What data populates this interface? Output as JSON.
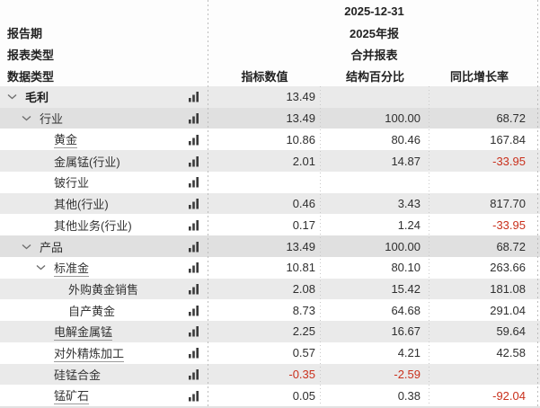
{
  "header": {
    "date": "2025-12-31",
    "report_type": "2025年报",
    "statement_type": "合并报表",
    "row_labels": {
      "period": "报告期",
      "statement": "报表类型",
      "data_type": "数据类型"
    },
    "columns": {
      "c1": "指标数值",
      "c2": "结构百分比",
      "c3": "同比增长率"
    }
  },
  "colors": {
    "negative_value": "#c9301c",
    "row_gray": "#eaeaea",
    "row_group": "#e0e0e0",
    "row_white": "#ffffff",
    "icon_dark": "#3a3a3a",
    "chevron_gray": "#6e6e6e"
  },
  "icons": {
    "chevron": "chevron-down-icon",
    "bars": "bar-chart-icon"
  },
  "rows": [
    {
      "label": "毛利",
      "v1": "13.49",
      "v2": "",
      "v3": "",
      "level": 1,
      "expand": true,
      "bold": true,
      "underline": false,
      "bg": "gray"
    },
    {
      "label": "行业",
      "v1": "13.49",
      "v2": "100.00",
      "v3": "68.72",
      "level": 2,
      "expand": true,
      "bold": false,
      "underline": false,
      "bg": "group"
    },
    {
      "label": "黄金",
      "v1": "10.86",
      "v2": "80.46",
      "v3": "167.84",
      "level": 3,
      "expand": false,
      "bold": false,
      "underline": true,
      "bg": "white"
    },
    {
      "label": "金属锰(行业)",
      "v1": "2.01",
      "v2": "14.87",
      "v3": "-33.95",
      "level": 3,
      "expand": false,
      "bold": false,
      "underline": false,
      "bg": "gray"
    },
    {
      "label": "铍行业",
      "v1": "",
      "v2": "",
      "v3": "",
      "level": 3,
      "expand": false,
      "bold": false,
      "underline": false,
      "bg": "white"
    },
    {
      "label": "其他(行业)",
      "v1": "0.46",
      "v2": "3.43",
      "v3": "817.70",
      "level": 3,
      "expand": false,
      "bold": false,
      "underline": false,
      "bg": "gray"
    },
    {
      "label": "其他业务(行业)",
      "v1": "0.17",
      "v2": "1.24",
      "v3": "-33.95",
      "level": 3,
      "expand": false,
      "bold": false,
      "underline": false,
      "bg": "white"
    },
    {
      "label": "产品",
      "v1": "13.49",
      "v2": "100.00",
      "v3": "68.72",
      "level": 2,
      "expand": true,
      "bold": false,
      "underline": false,
      "bg": "group"
    },
    {
      "label": "标准金",
      "v1": "10.81",
      "v2": "80.10",
      "v3": "263.66",
      "level": 3,
      "expand": true,
      "bold": false,
      "underline": true,
      "bg": "white"
    },
    {
      "label": "外购黄金销售",
      "v1": "2.08",
      "v2": "15.42",
      "v3": "181.08",
      "level": 4,
      "expand": false,
      "bold": false,
      "underline": false,
      "bg": "gray"
    },
    {
      "label": "自产黄金",
      "v1": "8.73",
      "v2": "64.68",
      "v3": "291.04",
      "level": 4,
      "expand": false,
      "bold": false,
      "underline": false,
      "bg": "white"
    },
    {
      "label": "电解金属锰",
      "v1": "2.25",
      "v2": "16.67",
      "v3": "59.64",
      "level": 3,
      "expand": false,
      "bold": false,
      "underline": true,
      "bg": "gray"
    },
    {
      "label": "对外精炼加工",
      "v1": "0.57",
      "v2": "4.21",
      "v3": "42.58",
      "level": 3,
      "expand": false,
      "bold": false,
      "underline": true,
      "bg": "white"
    },
    {
      "label": "硅锰合金",
      "v1": "-0.35",
      "v2": "-2.59",
      "v3": "",
      "level": 3,
      "expand": false,
      "bold": false,
      "underline": false,
      "bg": "gray"
    },
    {
      "label": "锰矿石",
      "v1": "0.05",
      "v2": "0.38",
      "v3": "-92.04",
      "level": 3,
      "expand": false,
      "bold": false,
      "underline": true,
      "bg": "white"
    }
  ]
}
